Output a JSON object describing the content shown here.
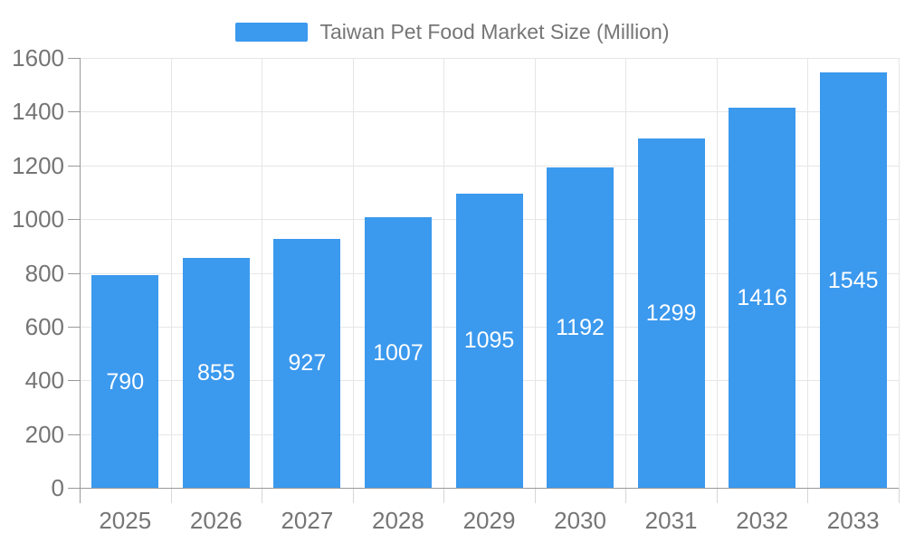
{
  "legend": {
    "label": "Taiwan Pet Food Market Size (Million)"
  },
  "colors": {
    "bar": "#3b99ee",
    "grid": "#e6e6e6",
    "axis_line": "#999999",
    "tick_label": "#757575",
    "value_label": "#ffffff",
    "background": "#ffffff"
  },
  "chart_data": {
    "type": "bar",
    "title": "Taiwan Pet Food Market Size (Million)",
    "series_name": "Taiwan Pet Food Market Size (Million)",
    "categories": [
      "2025",
      "2026",
      "2027",
      "2028",
      "2029",
      "2030",
      "2031",
      "2032",
      "2033"
    ],
    "values": [
      790,
      855,
      927,
      1007,
      1095,
      1192,
      1299,
      1416,
      1545
    ],
    "xlabel": "",
    "ylabel": "",
    "ylim": [
      0,
      1600
    ],
    "ytick_interval": 200,
    "yticks": [
      0,
      200,
      400,
      600,
      800,
      1000,
      1200,
      1400,
      1600
    ],
    "grid": true,
    "legend_position": "top",
    "value_labels": "inside-center"
  }
}
